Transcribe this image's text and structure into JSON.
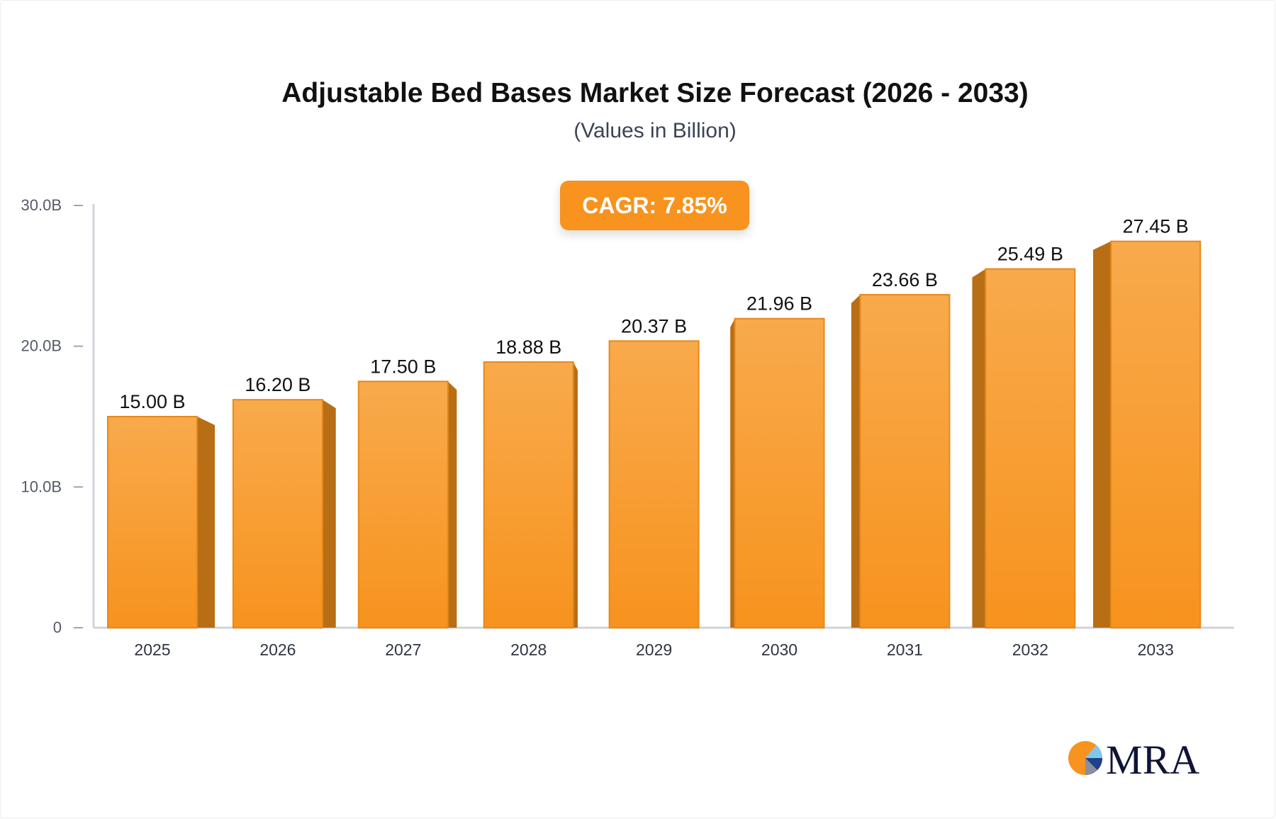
{
  "chart_data": {
    "type": "bar",
    "title": "Adjustable Bed Bases Market Size Forecast (2026 - 2033)",
    "subtitle": "(Values in Billion)",
    "annotation": "CAGR: 7.85%",
    "categories": [
      "2025",
      "2026",
      "2027",
      "2028",
      "2029",
      "2030",
      "2031",
      "2032",
      "2033"
    ],
    "values": [
      15.0,
      16.2,
      17.5,
      18.88,
      20.37,
      21.96,
      23.66,
      25.49,
      27.45
    ],
    "data_labels": [
      "15.00 B",
      "16.20 B",
      "17.50 B",
      "18.88 B",
      "20.37 B",
      "21.96 B",
      "23.66 B",
      "25.49 B",
      "27.45 B"
    ],
    "y_ticks": [
      0,
      10,
      20,
      30
    ],
    "y_tick_labels": [
      "0",
      "10.0B",
      "20.0B",
      "30.0B"
    ],
    "ylim": [
      0,
      30
    ],
    "xlabel": "",
    "ylabel": "",
    "grid": false,
    "colors": {
      "bar_top": "#f8aa4c",
      "bar_bottom": "#f7931e",
      "bar_side": "#b86e15",
      "bar_border": "#e8891a",
      "axis": "#d0d3da"
    }
  },
  "logo": {
    "text": "MRA"
  }
}
